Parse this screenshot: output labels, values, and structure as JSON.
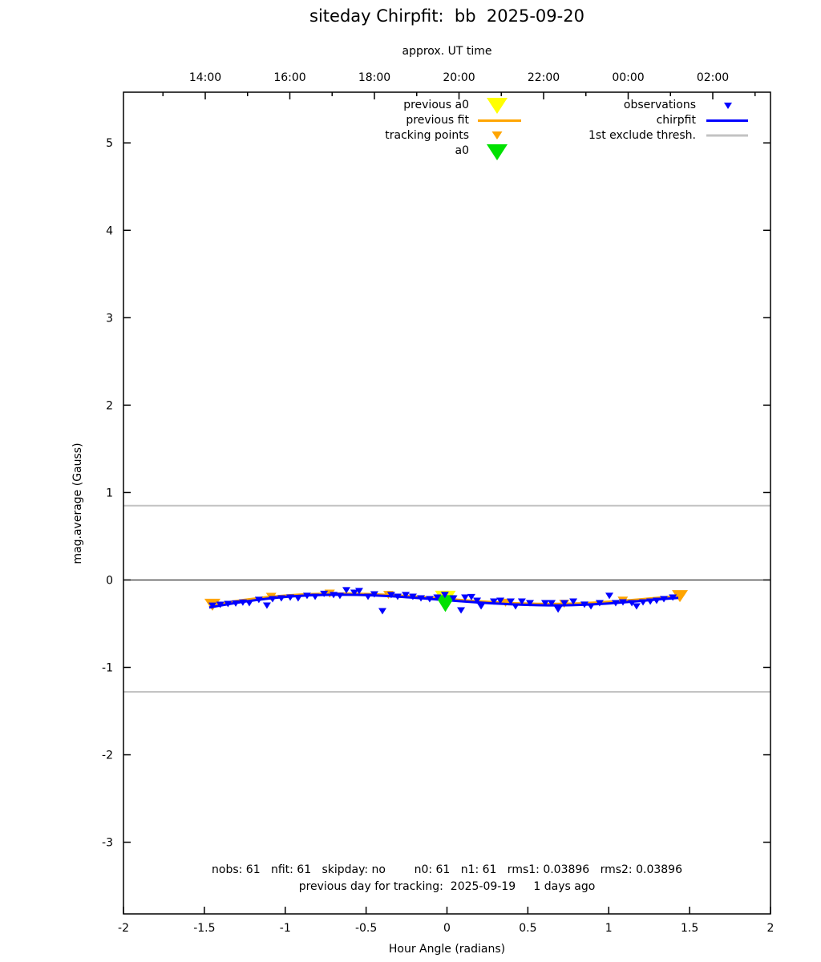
{
  "chart_data": {
    "type": "scatter",
    "title": "siteday Chirpfit:  bb  2025-09-20",
    "x2label": "approx. UT time",
    "xlabel": "Hour Angle (radians)",
    "ylabel": "mag.average (Gauss)",
    "xlim": [
      -2,
      2
    ],
    "ylim": [
      -3.82,
      5.58
    ],
    "grid": false,
    "legend_position": "top-inside-two-columns",
    "x_ticks": [
      {
        "v": -2,
        "label": "-2"
      },
      {
        "v": -1.5,
        "label": "-1.5"
      },
      {
        "v": -1,
        "label": "-1"
      },
      {
        "v": -0.5,
        "label": "-0.5"
      },
      {
        "v": 0,
        "label": "0"
      },
      {
        "v": 0.5,
        "label": "0.5"
      },
      {
        "v": 1,
        "label": "1"
      },
      {
        "v": 1.5,
        "label": "1.5"
      },
      {
        "v": 2,
        "label": "2"
      }
    ],
    "y_ticks": [
      {
        "v": -3,
        "label": "-3"
      },
      {
        "v": -2,
        "label": "-2"
      },
      {
        "v": -1,
        "label": "-1"
      },
      {
        "v": 0,
        "label": "0"
      },
      {
        "v": 1,
        "label": "1"
      },
      {
        "v": 2,
        "label": "2"
      },
      {
        "v": 3,
        "label": "3"
      },
      {
        "v": 4,
        "label": "4"
      },
      {
        "v": 5,
        "label": "5"
      }
    ],
    "x2_ticks": [
      {
        "v": -1.4944,
        "label": "14:00"
      },
      {
        "v": -0.9715,
        "label": "16:00"
      },
      {
        "v": -0.4486,
        "label": "18:00"
      },
      {
        "v": 0.0744,
        "label": "20:00"
      },
      {
        "v": 0.5973,
        "label": "22:00"
      },
      {
        "v": 1.1202,
        "label": "00:00"
      },
      {
        "v": 1.6431,
        "label": "02:00"
      }
    ],
    "x2_minor_ticks": [
      -1.7559,
      -1.233,
      -0.71,
      -0.1871,
      0.3358,
      0.8588,
      1.3817,
      1.9046
    ],
    "colors": {
      "observations": "#0000ff",
      "chirpfit": "#0000ff",
      "previous_fit": "#ffa500",
      "tracking_points": "#ffa500",
      "previous_a0": "#ffff00",
      "a0": "#00e100",
      "exclude_threshold": "#c3c3c3",
      "zero_line": "#000000"
    },
    "zero_line": 0,
    "exclude_thresholds": [
      0.85,
      -1.28
    ],
    "previous_a0": [
      -0.01,
      -0.215
    ],
    "a0": [
      -0.01,
      -0.27
    ],
    "tracking_points": [
      [
        -1.45,
        -0.283
      ],
      [
        -1.087,
        -0.193
      ],
      [
        -0.725,
        -0.156
      ],
      [
        -0.362,
        -0.171
      ],
      [
        0.0,
        -0.217
      ],
      [
        0.362,
        -0.261
      ],
      [
        0.725,
        -0.273
      ],
      [
        1.087,
        -0.237
      ],
      [
        1.44,
        -0.185
      ]
    ],
    "previous_fit": [
      [
        -1.47,
        -0.29
      ],
      [
        -1.4,
        -0.268
      ],
      [
        -1.33,
        -0.248
      ],
      [
        -1.26,
        -0.23
      ],
      [
        -1.19,
        -0.213
      ],
      [
        -1.12,
        -0.198
      ],
      [
        -1.05,
        -0.186
      ],
      [
        -0.98,
        -0.176
      ],
      [
        -0.91,
        -0.168
      ],
      [
        -0.84,
        -0.162
      ],
      [
        -0.77,
        -0.158
      ],
      [
        -0.7,
        -0.156
      ],
      [
        -0.63,
        -0.156
      ],
      [
        -0.56,
        -0.158
      ],
      [
        -0.49,
        -0.161
      ],
      [
        -0.42,
        -0.166
      ],
      [
        -0.35,
        -0.172
      ],
      [
        -0.28,
        -0.18
      ],
      [
        -0.21,
        -0.188
      ],
      [
        -0.14,
        -0.197
      ],
      [
        -0.07,
        -0.207
      ],
      [
        0.0,
        -0.217
      ],
      [
        0.07,
        -0.227
      ],
      [
        0.14,
        -0.236
      ],
      [
        0.21,
        -0.245
      ],
      [
        0.28,
        -0.253
      ],
      [
        0.35,
        -0.26
      ],
      [
        0.42,
        -0.266
      ],
      [
        0.49,
        -0.27
      ],
      [
        0.56,
        -0.273
      ],
      [
        0.63,
        -0.274
      ],
      [
        0.7,
        -0.273
      ],
      [
        0.77,
        -0.271
      ],
      [
        0.84,
        -0.266
      ],
      [
        0.91,
        -0.26
      ],
      [
        0.98,
        -0.252
      ],
      [
        1.05,
        -0.243
      ],
      [
        1.12,
        -0.233
      ],
      [
        1.19,
        -0.222
      ],
      [
        1.26,
        -0.211
      ],
      [
        1.33,
        -0.2
      ],
      [
        1.4,
        -0.19
      ],
      [
        1.44,
        -0.185
      ]
    ],
    "chirpfit": [
      [
        -1.47,
        -0.315
      ],
      [
        -1.4,
        -0.292
      ],
      [
        -1.33,
        -0.27
      ],
      [
        -1.26,
        -0.25
      ],
      [
        -1.19,
        -0.232
      ],
      [
        -1.12,
        -0.216
      ],
      [
        -1.05,
        -0.202
      ],
      [
        -0.98,
        -0.191
      ],
      [
        -0.91,
        -0.182
      ],
      [
        -0.84,
        -0.175
      ],
      [
        -0.77,
        -0.171
      ],
      [
        -0.7,
        -0.169
      ],
      [
        -0.63,
        -0.169
      ],
      [
        -0.56,
        -0.17
      ],
      [
        -0.49,
        -0.174
      ],
      [
        -0.42,
        -0.179
      ],
      [
        -0.35,
        -0.185
      ],
      [
        -0.28,
        -0.193
      ],
      [
        -0.21,
        -0.202
      ],
      [
        -0.14,
        -0.211
      ],
      [
        -0.07,
        -0.221
      ],
      [
        0.0,
        -0.231
      ],
      [
        0.07,
        -0.241
      ],
      [
        0.14,
        -0.25
      ],
      [
        0.21,
        -0.259
      ],
      [
        0.28,
        -0.267
      ],
      [
        0.35,
        -0.274
      ],
      [
        0.42,
        -0.28
      ],
      [
        0.49,
        -0.285
      ],
      [
        0.56,
        -0.288
      ],
      [
        0.63,
        -0.29
      ],
      [
        0.7,
        -0.29
      ],
      [
        0.77,
        -0.288
      ],
      [
        0.84,
        -0.284
      ],
      [
        0.91,
        -0.278
      ],
      [
        0.98,
        -0.271
      ],
      [
        1.05,
        -0.262
      ],
      [
        1.12,
        -0.252
      ],
      [
        1.19,
        -0.241
      ],
      [
        1.26,
        -0.23
      ],
      [
        1.33,
        -0.219
      ],
      [
        1.4,
        -0.209
      ],
      [
        1.43,
        -0.205
      ]
    ],
    "observations": [
      [
        -1.45,
        -0.295
      ],
      [
        -1.402,
        -0.285
      ],
      [
        -1.354,
        -0.276
      ],
      [
        -1.306,
        -0.27
      ],
      [
        -1.262,
        -0.26
      ],
      [
        -1.222,
        -0.266
      ],
      [
        -1.163,
        -0.229
      ],
      [
        -1.113,
        -0.294
      ],
      [
        -1.078,
        -0.22
      ],
      [
        -1.024,
        -0.211
      ],
      [
        -0.969,
        -0.202
      ],
      [
        -0.92,
        -0.211
      ],
      [
        -0.865,
        -0.183
      ],
      [
        -0.815,
        -0.193
      ],
      [
        -0.76,
        -0.16
      ],
      [
        -0.701,
        -0.174
      ],
      [
        -0.662,
        -0.183
      ],
      [
        -0.622,
        -0.119
      ],
      [
        -0.573,
        -0.147
      ],
      [
        -0.543,
        -0.128
      ],
      [
        -0.488,
        -0.193
      ],
      [
        -0.449,
        -0.165
      ],
      [
        -0.399,
        -0.358
      ],
      [
        -0.345,
        -0.174
      ],
      [
        -0.305,
        -0.193
      ],
      [
        -0.255,
        -0.174
      ],
      [
        -0.211,
        -0.193
      ],
      [
        -0.161,
        -0.211
      ],
      [
        -0.107,
        -0.22
      ],
      [
        -0.06,
        -0.202
      ],
      [
        -0.013,
        -0.172
      ],
      [
        0.04,
        -0.212
      ],
      [
        0.087,
        -0.349
      ],
      [
        0.112,
        -0.202
      ],
      [
        0.151,
        -0.196
      ],
      [
        0.186,
        -0.239
      ],
      [
        0.211,
        -0.303
      ],
      [
        0.29,
        -0.248
      ],
      [
        0.33,
        -0.239
      ],
      [
        0.394,
        -0.248
      ],
      [
        0.424,
        -0.303
      ],
      [
        0.463,
        -0.248
      ],
      [
        0.513,
        -0.266
      ],
      [
        0.607,
        -0.266
      ],
      [
        0.647,
        -0.266
      ],
      [
        0.687,
        -0.339
      ],
      [
        0.726,
        -0.266
      ],
      [
        0.781,
        -0.248
      ],
      [
        0.85,
        -0.284
      ],
      [
        0.89,
        -0.303
      ],
      [
        0.944,
        -0.266
      ],
      [
        1.004,
        -0.183
      ],
      [
        1.043,
        -0.266
      ],
      [
        1.088,
        -0.257
      ],
      [
        1.143,
        -0.266
      ],
      [
        1.172,
        -0.303
      ],
      [
        1.212,
        -0.257
      ],
      [
        1.257,
        -0.248
      ],
      [
        1.296,
        -0.239
      ],
      [
        1.341,
        -0.22
      ],
      [
        1.396,
        -0.202
      ]
    ]
  },
  "legend": {
    "entries": [
      {
        "label": "previous a0",
        "type": "marker",
        "size": "large",
        "color": "#ffff00"
      },
      {
        "label": "previous fit",
        "type": "line",
        "color": "#ffa500"
      },
      {
        "label": "tracking points",
        "type": "marker",
        "size": "medium",
        "color": "#ffa500"
      },
      {
        "label": "a0",
        "type": "marker",
        "size": "large",
        "color": "#00e100"
      },
      {
        "label": "observations",
        "type": "marker",
        "size": "small",
        "color": "#0000ff"
      },
      {
        "label": "chirpfit",
        "type": "line",
        "color": "#0000ff"
      },
      {
        "label": "1st exclude thresh.",
        "type": "line",
        "color": "#c3c3c3"
      }
    ]
  },
  "stats": {
    "nobs": 61,
    "nfit": 61,
    "skipday": "no",
    "n0": 61,
    "n1": 61,
    "rms1": 0.03896,
    "rms2": 0.03896,
    "previous_day_for_tracking": "2025-09-19",
    "days_ago": "1 days ago",
    "line1": "nobs: 61   nfit: 61   skipday: no        n0: 61   n1: 61   rms1: 0.03896   rms2: 0.03896",
    "line2": "previous day for tracking:  2025-09-19     1 days ago"
  }
}
